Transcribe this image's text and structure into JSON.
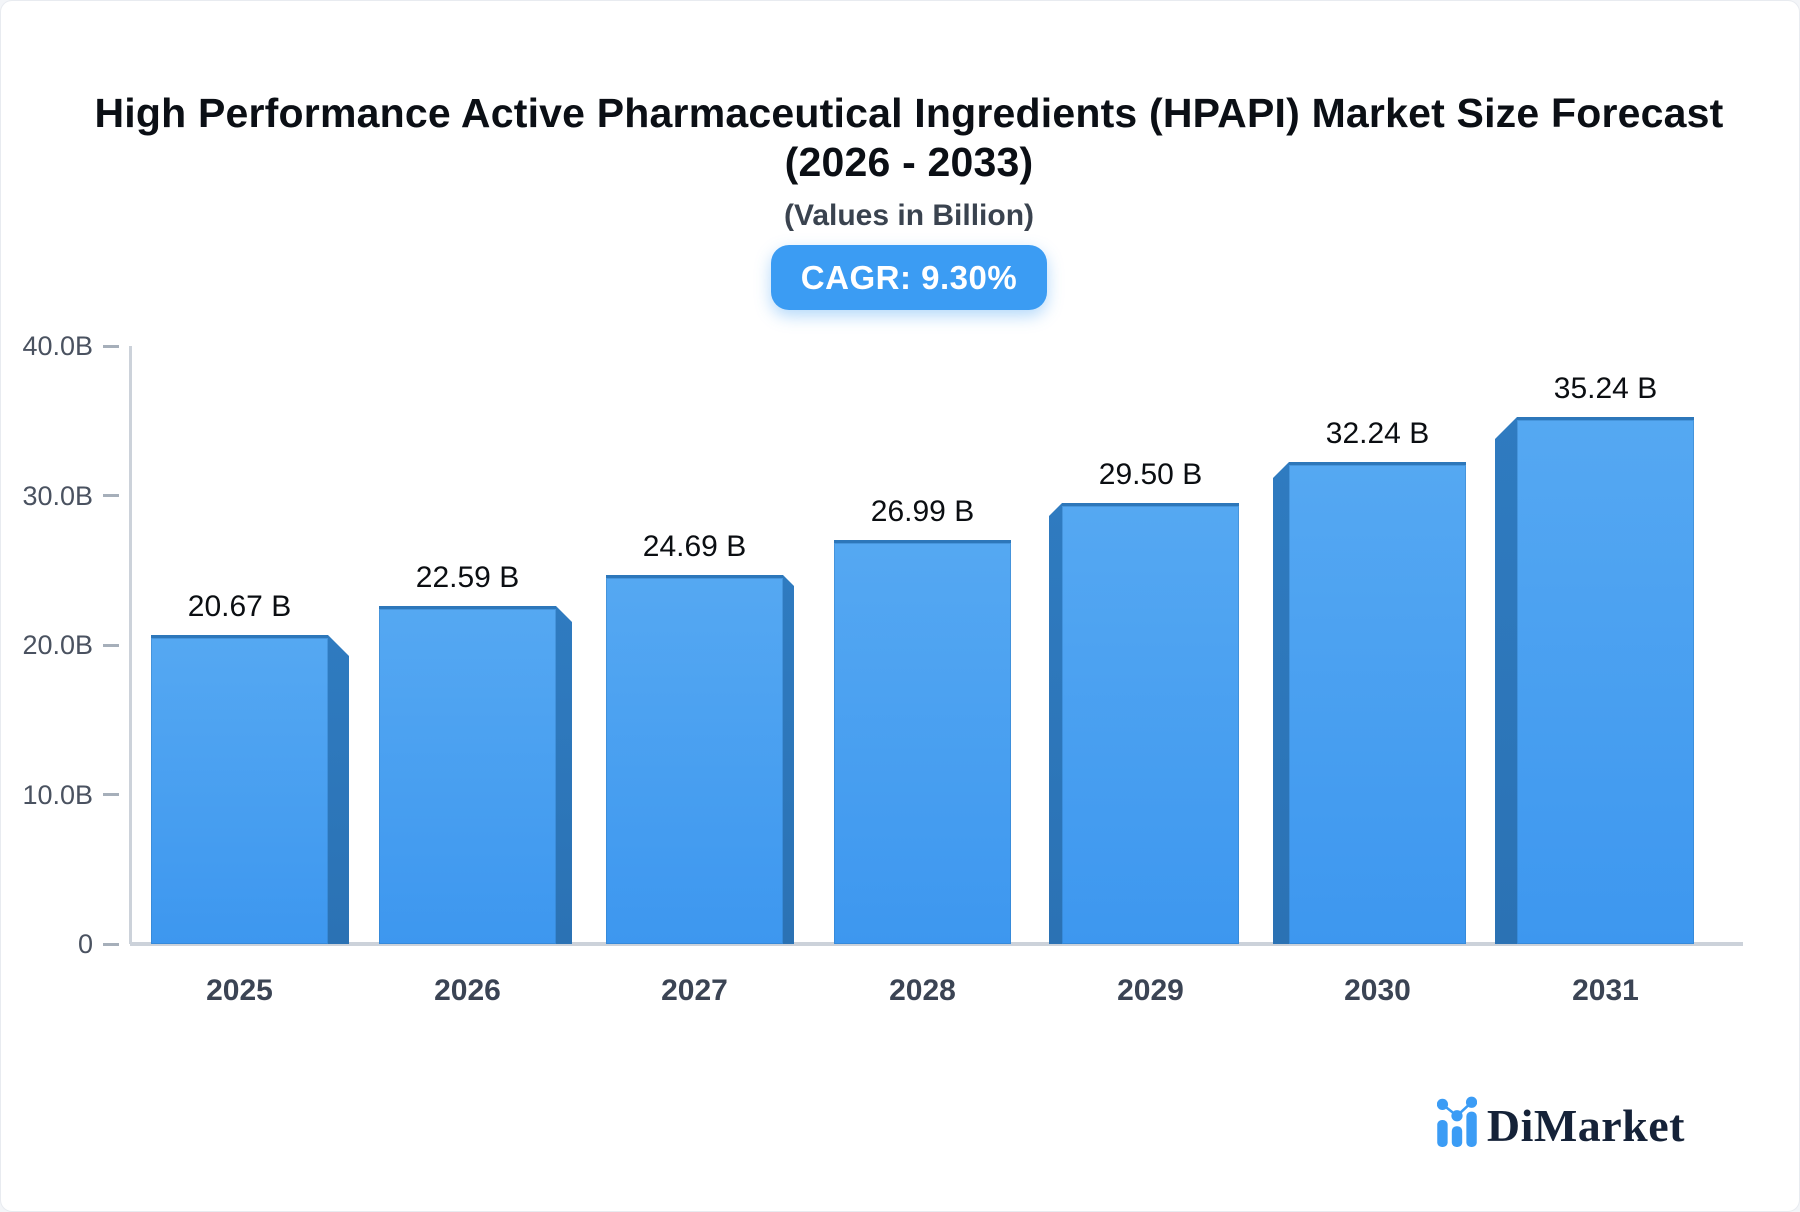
{
  "header": {
    "title_line1": "High Performance Active Pharmaceutical Ingredients (HPAPI) Market Size Forecast",
    "title_line2": "(2026 - 2033)",
    "subtitle": "(Values in Billion)",
    "cagr_label": "CAGR: 9.30%"
  },
  "chart_data": {
    "type": "bar",
    "title": "High Performance Active Pharmaceutical Ingredients (HPAPI) Market Size Forecast (2026 - 2033)",
    "subtitle": "(Values in Billion)",
    "cagr_percent": 9.3,
    "categories": [
      "2025",
      "2026",
      "2027",
      "2028",
      "2029",
      "2030",
      "2031"
    ],
    "values": [
      20.67,
      22.59,
      24.69,
      26.99,
      29.5,
      32.24,
      35.24
    ],
    "value_labels": [
      "20.67 B",
      "22.59 B",
      "24.69 B",
      "26.99 B",
      "29.50 B",
      "32.24 B",
      "35.24 B"
    ],
    "y_ticks": [
      "0",
      "10.0B",
      "20.0B",
      "30.0B",
      "40.0B"
    ],
    "ylim": [
      0,
      40
    ],
    "xlabel": "",
    "ylabel": "",
    "grid": false,
    "legend": false,
    "bar_style": "3d-pseudo-perspective",
    "colors": {
      "bar_face_top": "#55a8f2",
      "bar_face_bottom": "#3d97ef",
      "bar_side": "#2d77ba",
      "badge_background": "#3b9cf3",
      "axis_line": "#ccd2da",
      "tick_label": "#4a5260",
      "category_label": "#3b4454",
      "value_label": "#0b0e12"
    }
  },
  "branding": {
    "logo_text": "DiMarket",
    "logo_icon": "bar-line-chart-icon",
    "logo_color": "#3b9cf5",
    "logo_text_color": "#152238"
  }
}
